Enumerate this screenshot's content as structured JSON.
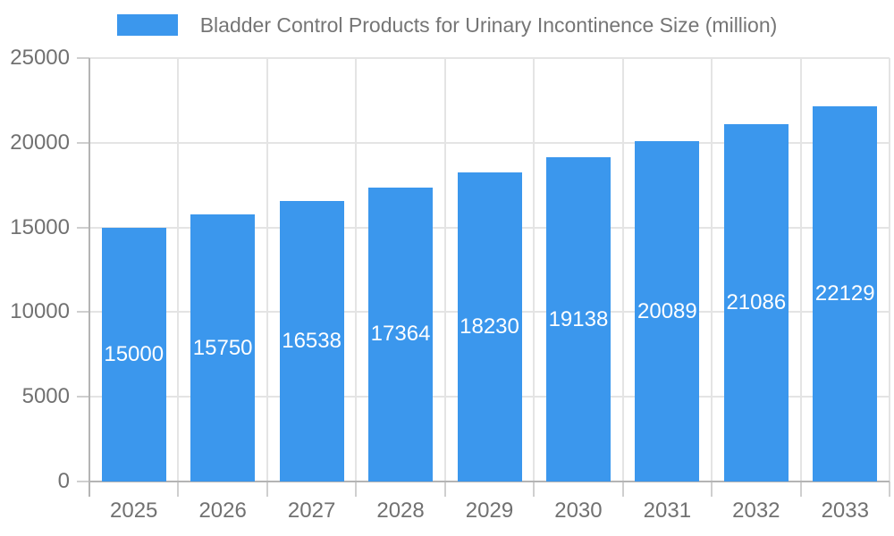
{
  "chart_data": {
    "type": "bar",
    "title": "Bladder Control Products for Urinary Incontinence Size (million)",
    "categories": [
      "2025",
      "2026",
      "2027",
      "2028",
      "2029",
      "2030",
      "2031",
      "2032",
      "2033"
    ],
    "values": [
      15000,
      15750,
      16538,
      17364,
      18230,
      19138,
      20089,
      21086,
      22129
    ],
    "series": [
      {
        "name": "Bladder Control Products for Urinary Incontinence Size (million)",
        "values": [
          15000,
          15750,
          16538,
          17364,
          18230,
          19138,
          20089,
          21086,
          22129
        ]
      }
    ],
    "xlabel": "",
    "ylabel": "",
    "ylim": [
      0,
      25000
    ],
    "yticks": [
      0,
      5000,
      10000,
      15000,
      20000,
      25000
    ],
    "grid": true,
    "legend_position": "top-center",
    "value_label_position": "inside-center"
  },
  "colors": {
    "bar": "#3B97ED",
    "grid": "#e4e4e4",
    "axis": "#b4b4b4",
    "tick": "#cfcfcf",
    "axis_text": "#717171",
    "legend_text": "#757575",
    "value_text": "#ffffff",
    "background": "#ffffff"
  }
}
